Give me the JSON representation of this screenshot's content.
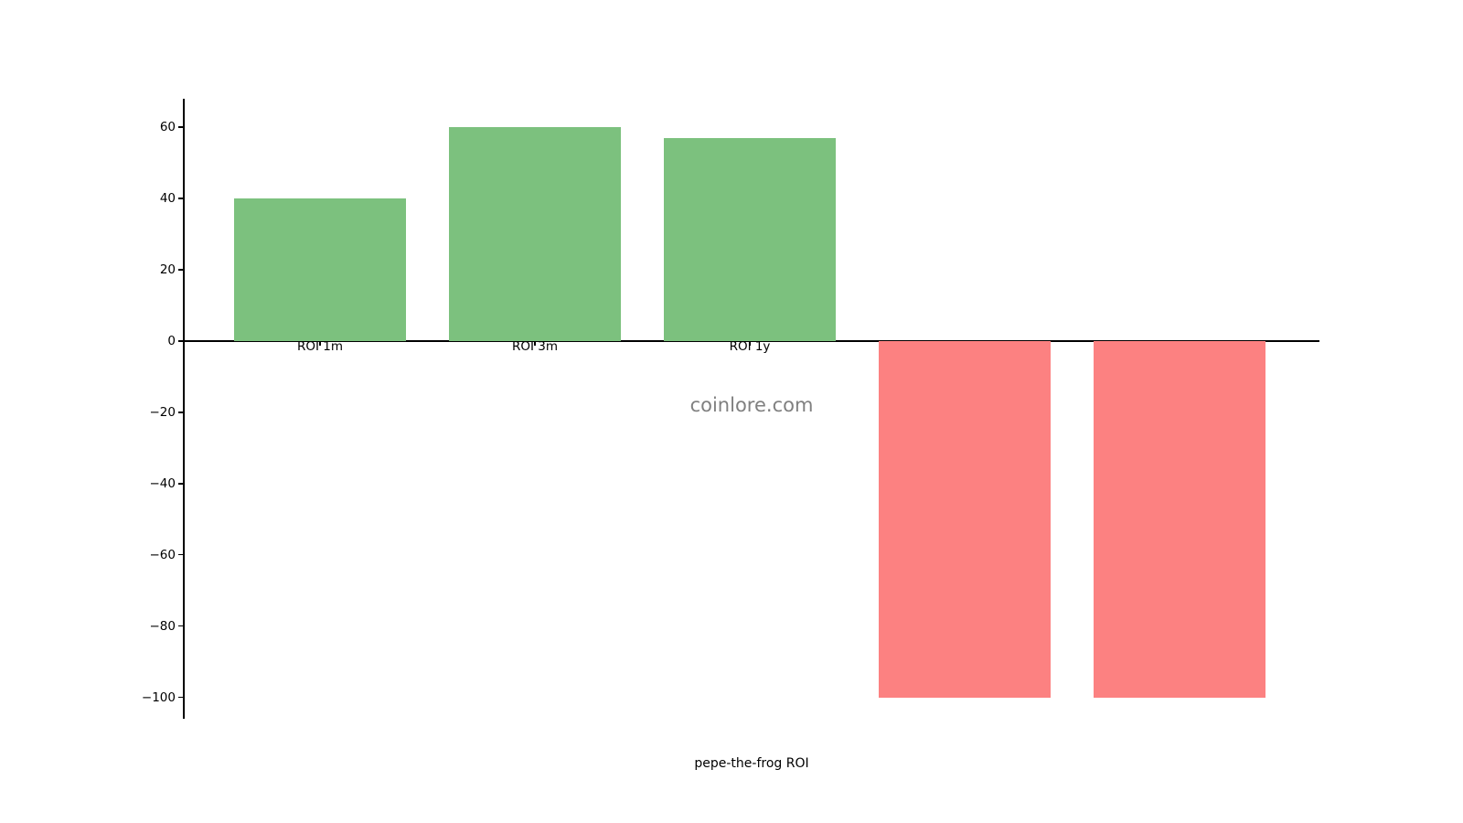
{
  "chart_data": {
    "type": "bar",
    "title": "pepe-the-frog ROI",
    "watermark": "coinlore.com",
    "categories": [
      "ROI 1m",
      "ROI 3m",
      "ROI 1y",
      "",
      ""
    ],
    "values": [
      40,
      60,
      57,
      -100,
      -100
    ],
    "xlabel": "pepe-the-frog ROI",
    "ylabel": "",
    "ylim": [
      -106,
      68
    ],
    "yticks": {
      "values": [
        60,
        40,
        20,
        0,
        -20,
        -40,
        -60,
        -80,
        -100
      ],
      "labels": [
        "60",
        "40",
        "20",
        "0",
        "−20",
        "−40",
        "−60",
        "−80",
        "−100"
      ]
    },
    "grid": false,
    "legend": null,
    "colors": {
      "positive": "#7cc17e",
      "negative": "#fc8181",
      "axis": "#000000",
      "watermark": "#808080",
      "background": "#ffffff"
    }
  }
}
